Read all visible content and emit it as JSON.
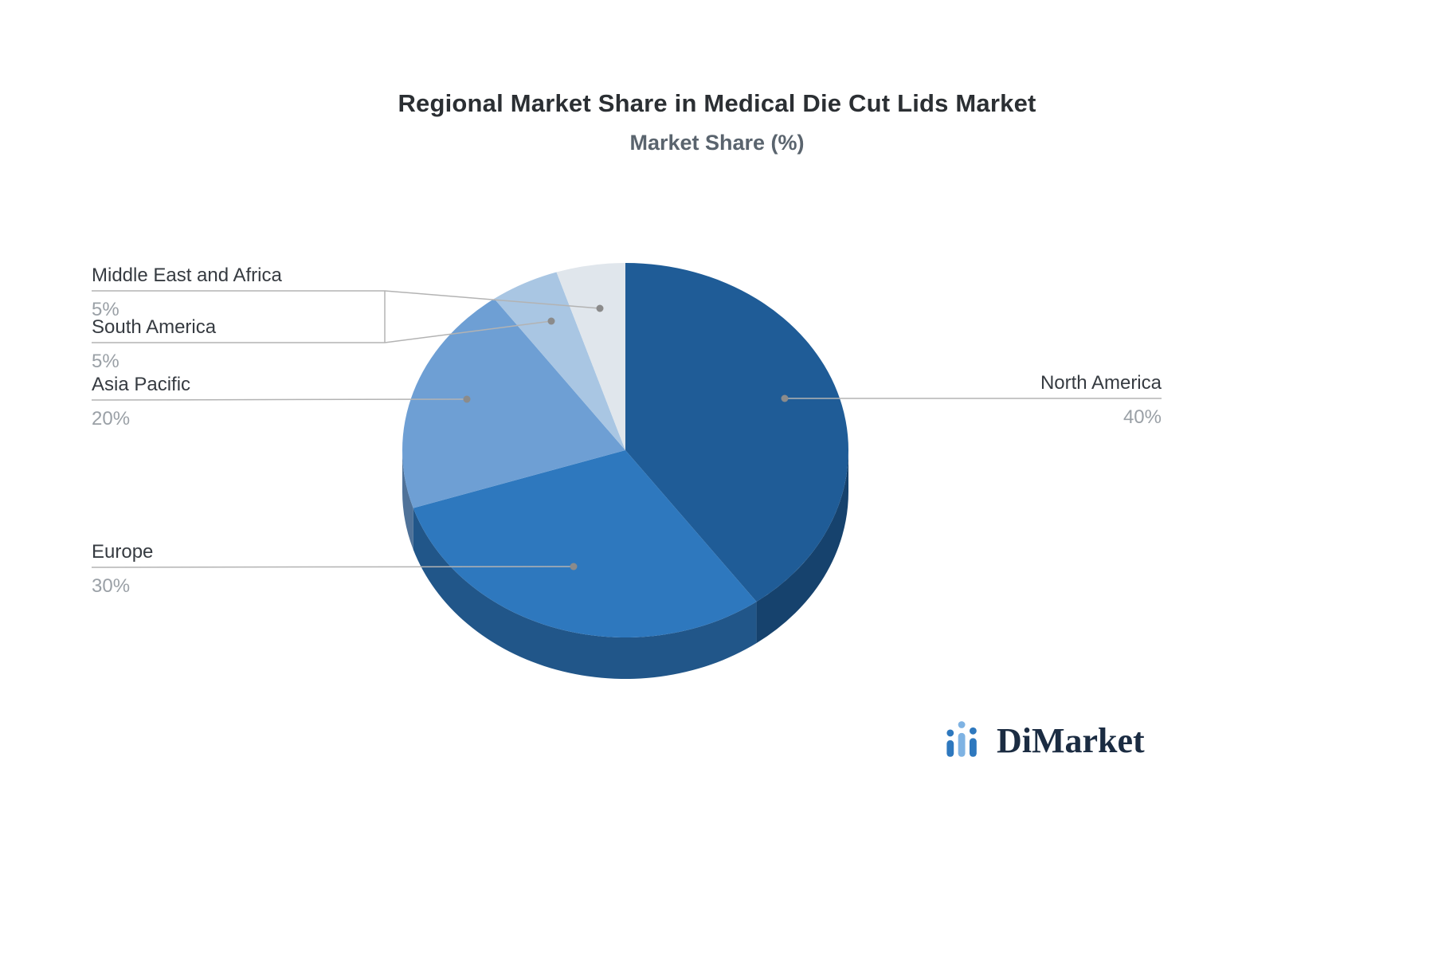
{
  "header": {
    "title": "Regional Market Share in Medical Die Cut Lids Market",
    "subtitle": "Market Share (%)"
  },
  "chart_data": {
    "type": "pie",
    "style": "3d",
    "title": "Regional Market Share in Medical Die Cut Lids Market",
    "subtitle": "Market Share (%)",
    "unit": "%",
    "categories": [
      "North America",
      "Europe",
      "Asia Pacific",
      "South America",
      "Middle East and Africa"
    ],
    "values": [
      40,
      30,
      20,
      5,
      5
    ],
    "labels_pct": [
      "40%",
      "30%",
      "20%",
      "5%",
      "5%"
    ],
    "colors": [
      "#1f5c97",
      "#2e78be",
      "#6e9fd4",
      "#a9c6e3",
      "#e0e6ec"
    ],
    "start_angle_deg": -90,
    "direction": "clockwise",
    "legend_position": "callout-labels",
    "grid": false
  },
  "logo": {
    "text": "DiMarket",
    "icon": "bar-chart-dots-icon",
    "icon_color": "#2e78be",
    "text_color": "#1b2c42"
  }
}
